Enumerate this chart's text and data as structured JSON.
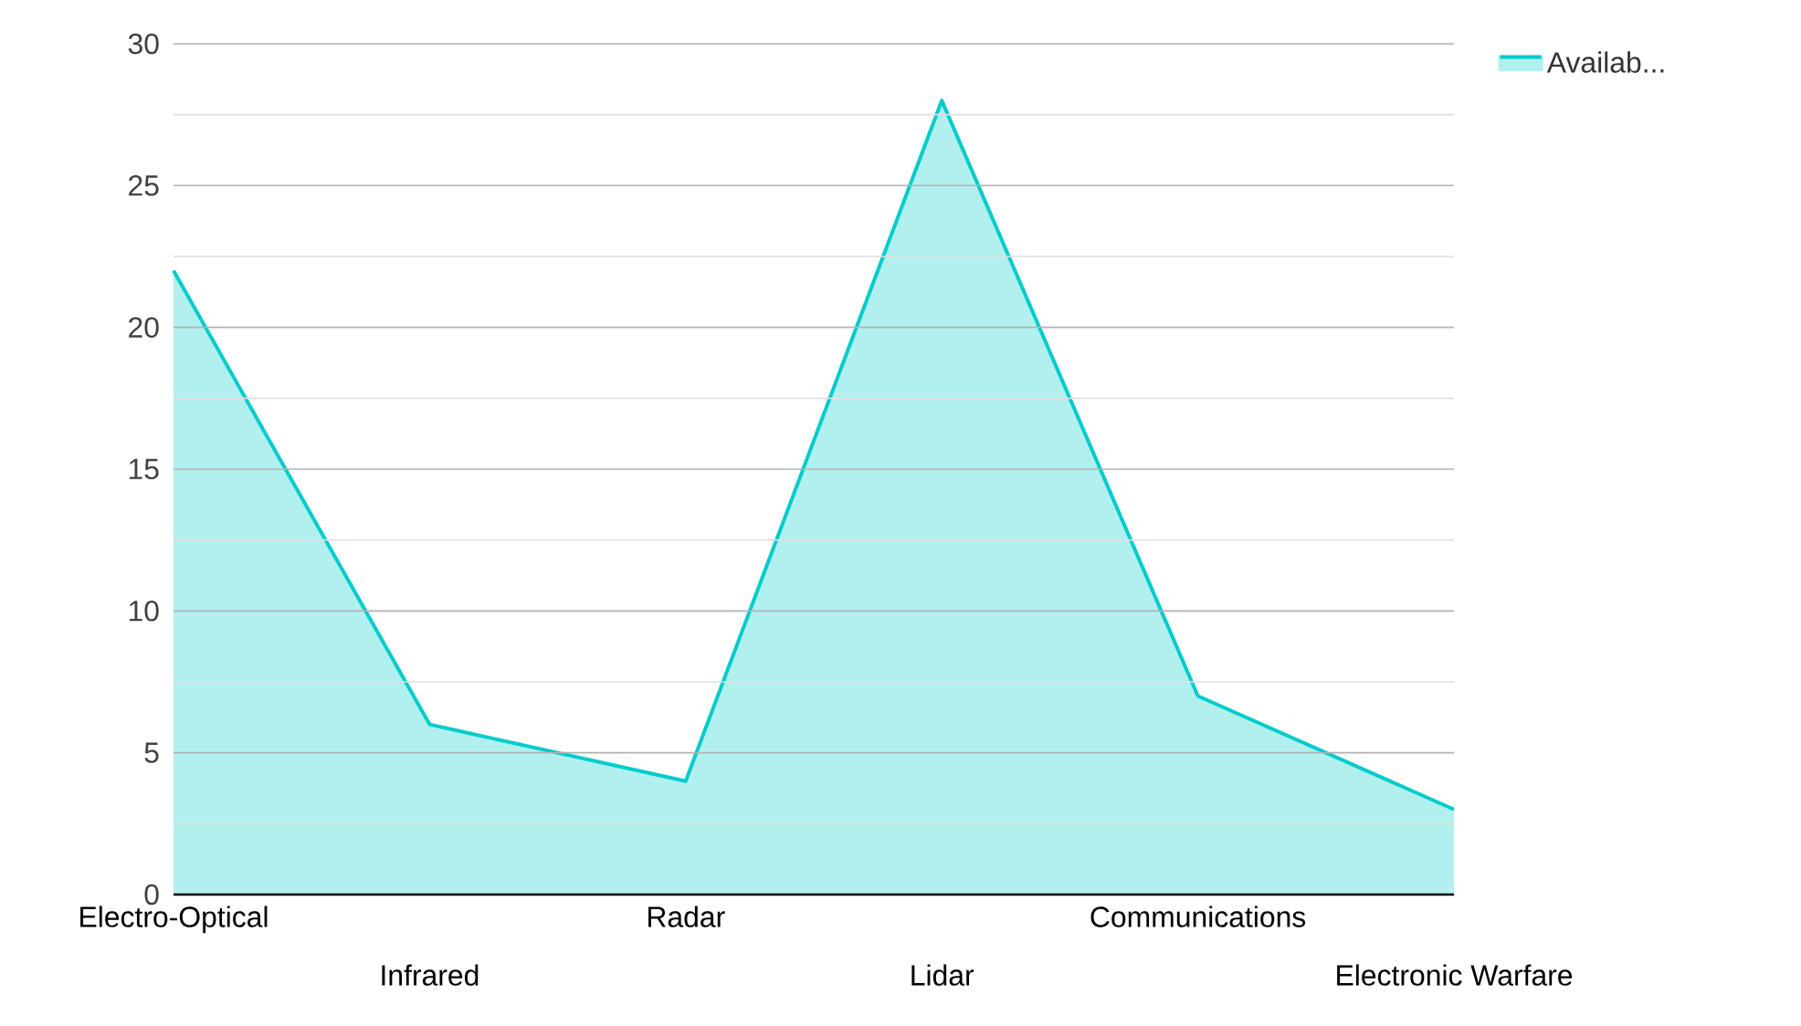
{
  "chart_data": {
    "type": "area",
    "categories": [
      "Electro-Optical",
      "Infrared",
      "Radar",
      "Lidar",
      "Communications",
      "Electronic Warfare"
    ],
    "series": [
      {
        "name": "Availab...",
        "color": "#00cccc",
        "values": [
          22,
          6,
          4,
          28,
          7,
          3
        ]
      }
    ],
    "ylim": [
      0,
      30
    ],
    "yticks": [
      0,
      5,
      10,
      15,
      20,
      25,
      30
    ],
    "grid": "y",
    "legend": "top right"
  }
}
